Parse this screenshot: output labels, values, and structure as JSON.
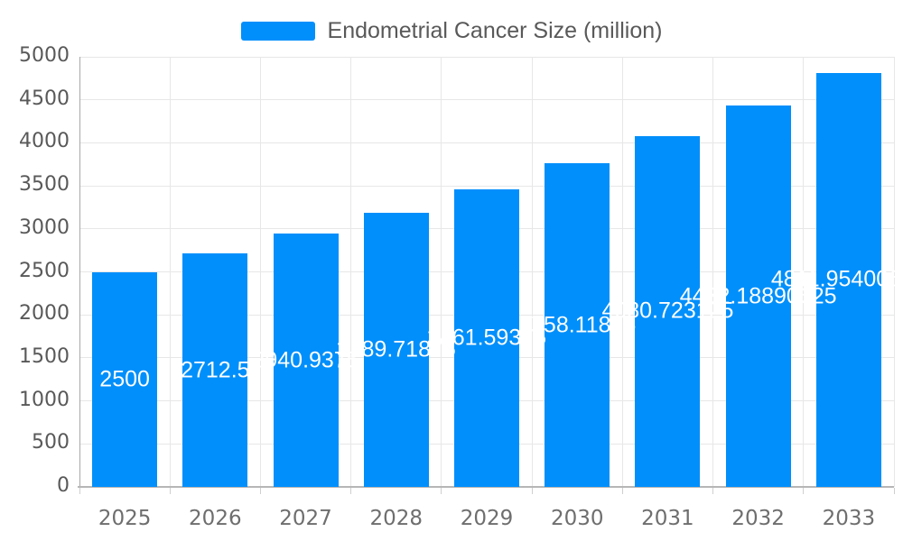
{
  "legend": {
    "label": "Endometrial Cancer Size (million)",
    "swatch_color": "#008FFB"
  },
  "chart_data": {
    "type": "bar",
    "title": "Endometrial Cancer Size (million)",
    "categories": [
      "2025",
      "2026",
      "2027",
      "2028",
      "2029",
      "2030",
      "2031",
      "2032",
      "2033"
    ],
    "values": [
      2500,
      2712.5,
      2940.9375,
      3189.71875,
      3461.59375,
      3758.11875,
      4080.723125,
      4432.18890625,
      4811.95400625
    ],
    "value_labels": [
      "2500",
      "2712.5",
      "2940.9375",
      "3189.71875",
      "3461.59375",
      "3758.11875",
      "4080.723125",
      "4432.18890625",
      "4811.95400625"
    ],
    "xlabel": "",
    "ylabel": "",
    "ylim": [
      0,
      5000
    ],
    "y_ticks": [
      0,
      500,
      1000,
      1500,
      2000,
      2500,
      3000,
      3500,
      4000,
      4500,
      5000
    ],
    "grid": true,
    "legend_position": "top",
    "bar_color": "#008FFB",
    "data_label_color": "#ffffff",
    "axis_text_color": "#595959",
    "gridline_color": "#e7e7e7",
    "axis_line_color": "#b6b6b6"
  }
}
